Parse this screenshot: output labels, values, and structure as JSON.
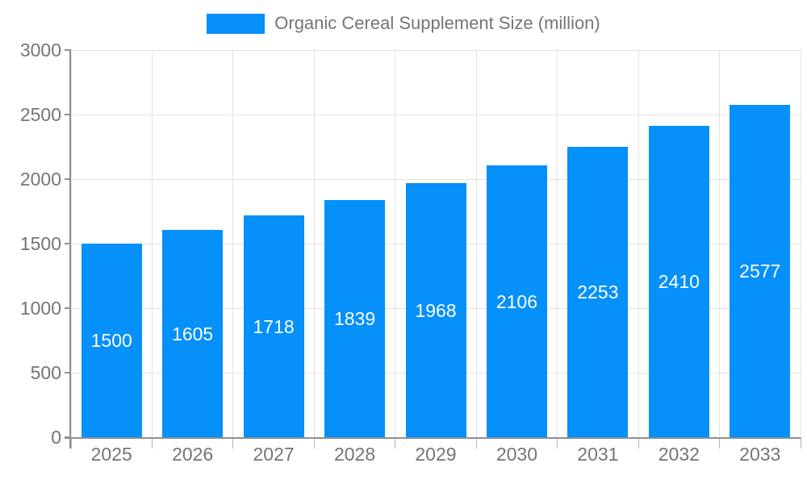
{
  "chart_data": {
    "type": "bar",
    "title": "Organic Cereal Supplement Size (million)",
    "series_name": "Organic Cereal Supplement Size (million)",
    "categories": [
      "2025",
      "2026",
      "2027",
      "2028",
      "2029",
      "2030",
      "2031",
      "2032",
      "2033"
    ],
    "values": [
      1500,
      1605,
      1718,
      1839,
      1968,
      2106,
      2253,
      2410,
      2577
    ],
    "xlabel": "",
    "ylabel": "",
    "ylim": [
      0,
      3000
    ],
    "ytick_step": 500,
    "yticks": [
      0,
      500,
      1000,
      1500,
      2000,
      2500,
      3000
    ],
    "grid": true,
    "legend_position": "top",
    "bar_color": "#0590fa",
    "bar_label_color": "#ffffff",
    "axis_text_color": "#757575"
  }
}
